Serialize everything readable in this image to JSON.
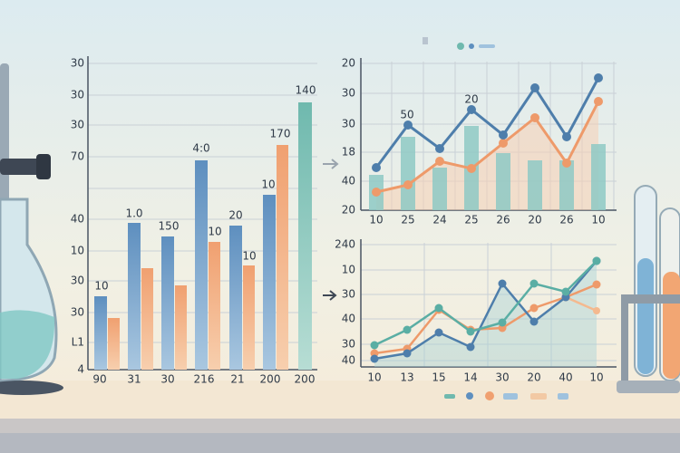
{
  "left_chart": {
    "y_labels": [
      "30",
      "30",
      "30",
      "70",
      "40",
      "10",
      "30",
      "30",
      "L1",
      "4"
    ],
    "x_labels": [
      "90",
      "31",
      "30",
      "216",
      "21",
      "200",
      "200"
    ],
    "bar_labels": [
      "10",
      "1.0",
      "150",
      "4:0",
      "10",
      "20",
      "10",
      "10",
      "170",
      "140"
    ]
  },
  "top_right_chart": {
    "y_labels": [
      "20",
      "30",
      "30",
      "18",
      "40",
      "20"
    ],
    "x_labels": [
      "10",
      "25",
      "24",
      "25",
      "26",
      "20",
      "26",
      "10"
    ],
    "point_labels": [
      "50",
      "20"
    ]
  },
  "bottom_right_chart": {
    "y_labels": [
      "240",
      "10",
      "30",
      "40",
      "30",
      "40"
    ],
    "x_labels": [
      "10",
      "13",
      "15",
      "14",
      "30",
      "20",
      "40",
      "10"
    ]
  }
}
